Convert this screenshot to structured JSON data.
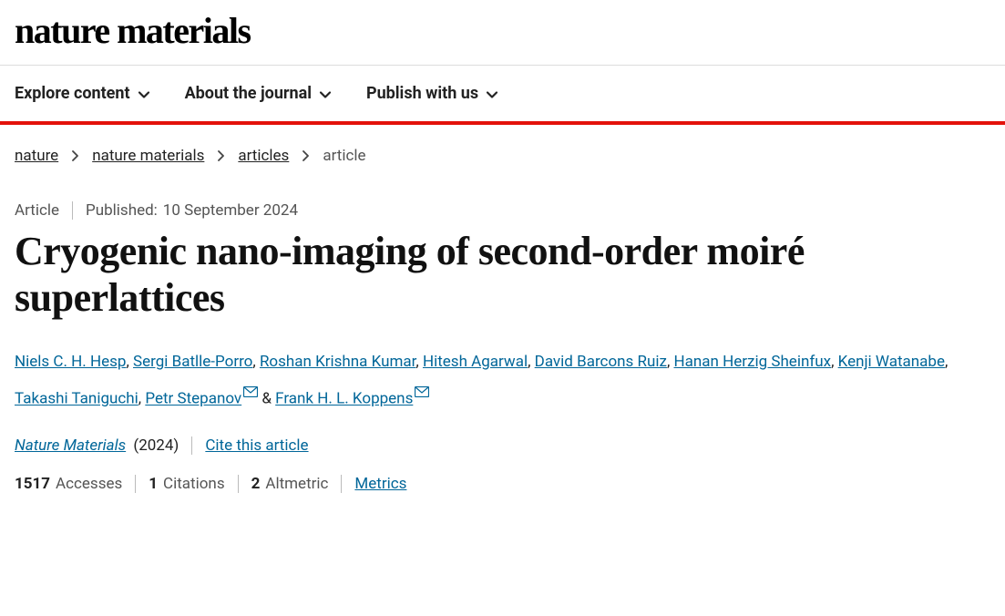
{
  "logo": "nature materials",
  "nav": [
    {
      "label": "Explore content"
    },
    {
      "label": "About the journal"
    },
    {
      "label": "Publish with us"
    }
  ],
  "breadcrumb": {
    "items": [
      "nature",
      "nature materials",
      "articles"
    ],
    "current": "article"
  },
  "meta": {
    "type": "Article",
    "published_label": "Published:",
    "published_date": "10 September 2024"
  },
  "title": "Cryogenic nano-imaging of second-order moiré superlattices",
  "authors": [
    {
      "name": "Niels C. H. Hesp",
      "mail": false
    },
    {
      "name": "Sergi Batlle-Porro",
      "mail": false
    },
    {
      "name": "Roshan Krishna Kumar",
      "mail": false
    },
    {
      "name": "Hitesh Agarwal",
      "mail": false
    },
    {
      "name": "David Barcons Ruiz",
      "mail": false
    },
    {
      "name": "Hanan Herzig Sheinfux",
      "mail": false
    },
    {
      "name": "Kenji Watanabe",
      "mail": false
    },
    {
      "name": "Takashi Taniguchi",
      "mail": false
    },
    {
      "name": "Petr Stepanov",
      "mail": true
    },
    {
      "name": "Frank H. L. Koppens",
      "mail": true
    }
  ],
  "journal": {
    "name": "Nature Materials",
    "year": "(2024)",
    "cite_label": "Cite this article"
  },
  "metrics": {
    "accesses": {
      "value": "1517",
      "label": "Accesses"
    },
    "citations": {
      "value": "1",
      "label": "Citations"
    },
    "altmetric": {
      "value": "2",
      "label": "Altmetric"
    },
    "metrics_link": "Metrics"
  },
  "colors": {
    "accent_red": "#e3120b",
    "link_blue": "#006699",
    "text": "#222222",
    "muted": "#555555"
  }
}
